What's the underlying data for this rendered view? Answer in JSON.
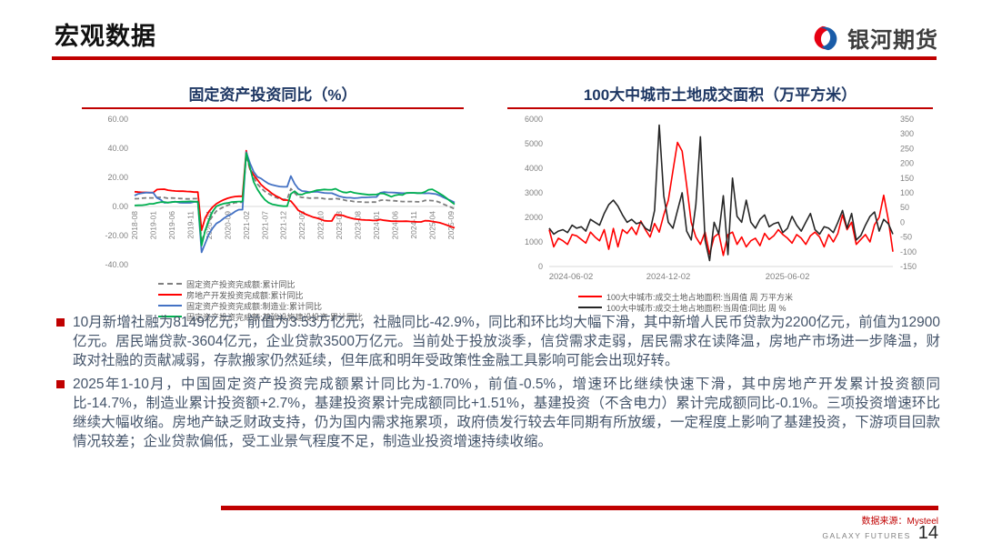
{
  "header": {
    "title": "宏观数据",
    "logo_text": "银河期货"
  },
  "chart_data": [
    {
      "type": "line",
      "title": "固定资产投资同比（%）",
      "ylim": [
        -40,
        60
      ],
      "y_ticks": [
        "60.00",
        "40.00",
        "20.00",
        "0.00",
        "-20.00",
        "-40.00"
      ],
      "x_tick_every": 5,
      "x_tick_labels": [
        "2018-08",
        "2019-01",
        "2019-06",
        "2019-11",
        "2020-04",
        "2020-09",
        "2021-02",
        "2021-07",
        "2021-12",
        "2022-05",
        "2022-10",
        "2023-03",
        "2023-08",
        "2024-01",
        "2024-06",
        "2024-11",
        "2025-04",
        "2025-09"
      ],
      "legend_position": "bottom",
      "grid": "zero-line-only",
      "series": [
        {
          "name": "固定资产投资完成额:累计同比",
          "color": "#7f7f7f",
          "dash": true,
          "values": [
            5.3,
            5.4,
            5.7,
            5.9,
            5.9,
            5.9,
            6.1,
            6.3,
            6.1,
            5.6,
            5.8,
            5.7,
            5.5,
            5.4,
            5.2,
            5.2,
            5.4,
            5.4,
            -24.5,
            -16.1,
            -10.3,
            -6.3,
            -3.1,
            -1.6,
            -0.3,
            0.8,
            1.8,
            2.6,
            2.9,
            2.9,
            35.0,
            25.6,
            19.9,
            15.4,
            12.6,
            10.3,
            8.9,
            7.3,
            6.1,
            5.2,
            4.9,
            4.9,
            12.2,
            9.3,
            6.8,
            6.2,
            6.1,
            5.7,
            5.8,
            5.9,
            5.8,
            5.3,
            5.1,
            5.1,
            5.5,
            5.1,
            4.7,
            4.0,
            3.8,
            3.4,
            3.2,
            3.1,
            2.9,
            2.9,
            3.0,
            3.0,
            4.2,
            4.5,
            4.2,
            4.0,
            3.9,
            3.6,
            3.4,
            3.4,
            3.4,
            3.3,
            3.2,
            3.2,
            4.1,
            4.2,
            4.0,
            3.7,
            2.8,
            1.6,
            0.5,
            -0.5,
            -1.7
          ]
        },
        {
          "name": "房地产开发投资完成额:累计同比",
          "color": "#ff0000",
          "dash": false,
          "values": [
            10.1,
            9.9,
            9.7,
            9.7,
            9.5,
            9.5,
            11.6,
            11.8,
            11.9,
            11.2,
            10.9,
            10.6,
            10.5,
            10.5,
            10.3,
            10.2,
            9.9,
            9.9,
            -16.3,
            -7.7,
            -3.3,
            -0.3,
            1.9,
            3.4,
            4.6,
            5.6,
            6.3,
            6.8,
            7.0,
            7.0,
            38.3,
            25.6,
            21.6,
            18.3,
            15.0,
            12.7,
            10.9,
            8.8,
            7.2,
            6.0,
            4.4,
            4.4,
            3.7,
            0.7,
            -2.7,
            -4.0,
            -5.4,
            -6.4,
            -7.4,
            -8.0,
            -8.8,
            -9.8,
            -10.0,
            -10.0,
            -5.7,
            -5.8,
            -6.2,
            -7.2,
            -7.9,
            -8.5,
            -8.8,
            -9.1,
            -9.3,
            -9.4,
            -9.6,
            -9.6,
            -9.0,
            -9.5,
            -9.8,
            -10.1,
            -10.1,
            -10.2,
            -10.2,
            -10.1,
            -10.3,
            -10.4,
            -10.6,
            -10.6,
            -9.8,
            -9.9,
            -10.3,
            -10.7,
            -11.2,
            -12.0,
            -12.9,
            -13.9,
            -14.7
          ]
        },
        {
          "name": "固定资产投资完成额:制造业:累计同比",
          "color": "#4472c4",
          "dash": false,
          "values": [
            7.5,
            8.7,
            9.1,
            9.5,
            9.5,
            9.5,
            5.9,
            4.6,
            2.5,
            2.7,
            3.0,
            3.3,
            2.6,
            2.5,
            2.6,
            2.5,
            3.1,
            3.1,
            -31.5,
            -25.2,
            -18.8,
            -14.8,
            -11.7,
            -10.2,
            -8.1,
            -6.5,
            -5.3,
            -3.5,
            -2.2,
            -2.2,
            37.3,
            29.8,
            23.8,
            20.4,
            19.2,
            17.3,
            15.7,
            14.8,
            14.2,
            13.7,
            13.5,
            13.5,
            20.9,
            15.6,
            12.2,
            10.6,
            10.4,
            9.9,
            10.0,
            10.1,
            9.7,
            9.3,
            9.1,
            9.1,
            8.1,
            7.0,
            6.4,
            6.0,
            6.0,
            5.7,
            5.9,
            6.2,
            6.2,
            6.3,
            6.5,
            6.5,
            9.4,
            9.9,
            9.7,
            9.6,
            9.5,
            9.3,
            9.1,
            9.2,
            9.3,
            9.3,
            9.2,
            9.2,
            9.0,
            9.1,
            8.8,
            8.5,
            7.5,
            6.2,
            5.1,
            4.0,
            2.7
          ]
        },
        {
          "name": "固定资产投资完成额:基础设施建设投资:累计同比",
          "color": "#00b050",
          "dash": false,
          "values": [
            0.7,
            0.8,
            0.9,
            1.2,
            1.8,
            1.8,
            2.5,
            3.0,
            3.0,
            2.6,
            3.0,
            3.2,
            3.2,
            3.4,
            3.3,
            3.5,
            3.3,
            3.3,
            -26.9,
            -16.4,
            -8.8,
            -3.3,
            0.1,
            1.2,
            2.0,
            2.4,
            3.0,
            3.2,
            3.4,
            3.4,
            36.6,
            26.8,
            16.9,
            11.8,
            7.8,
            4.6,
            2.6,
            1.5,
            1.0,
            0.5,
            0.2,
            0.2,
            8.6,
            10.5,
            8.3,
            8.2,
            9.3,
            9.6,
            10.4,
            11.2,
            11.4,
            11.7,
            11.5,
            11.5,
            12.2,
            10.8,
            9.8,
            9.5,
            10.2,
            9.4,
            9.0,
            8.6,
            8.3,
            8.0,
            8.2,
            8.2,
            9.0,
            8.8,
            7.8,
            6.7,
            7.7,
            8.1,
            7.9,
            9.3,
            9.4,
            9.4,
            9.2,
            9.2,
            10.0,
            11.5,
            11.8,
            10.4,
            8.9,
            7.3,
            5.4,
            3.3,
            1.5
          ]
        }
      ]
    },
    {
      "type": "line",
      "title": "100大中城市土地成交面积（万平方米）",
      "x_tick_labels": [
        "2024-06-02",
        "2024-12-02",
        "2025-06-02"
      ],
      "x_tick_indices": [
        0,
        26,
        52
      ],
      "axes": {
        "left": {
          "lim": [
            0,
            6000
          ],
          "ticks": [
            6000,
            5000,
            4000,
            3000,
            2000,
            1000,
            0
          ]
        },
        "right": {
          "lim": [
            -150,
            350
          ],
          "ticks": [
            350,
            300,
            250,
            200,
            150,
            100,
            50,
            0,
            -50,
            -100,
            -150
          ]
        }
      },
      "legend_position": "bottom",
      "series": [
        {
          "name": "100大中城市:成交土地占地面积:当周值 周 万平方米",
          "color": "#ff0000",
          "axis": "left",
          "dash": false,
          "values": [
            1500,
            800,
            1150,
            1050,
            900,
            1300,
            1250,
            1100,
            950,
            1400,
            1200,
            1050,
            1500,
            700,
            1550,
            800,
            1500,
            1350,
            1600,
            1300,
            1850,
            1500,
            1200,
            1750,
            1400,
            2100,
            2700,
            3900,
            5050,
            4700,
            3300,
            1800,
            1200,
            900,
            1400,
            500,
            1200,
            1350,
            450,
            1300,
            1400,
            900,
            1200,
            800,
            1050,
            1150,
            850,
            1350,
            1100,
            1250,
            1500,
            1300,
            1150,
            950,
            1300,
            1150,
            900,
            1250,
            1400,
            1200,
            800,
            1300,
            1000,
            1350,
            2100,
            1500,
            1800,
            900,
            1100,
            1300,
            1000,
            1700,
            2000,
            2900,
            1900,
            600
          ]
        },
        {
          "name": "100大中城市:成交土地占地面积:当周值:同比 周 %",
          "color": "#262626",
          "axis": "right",
          "dash": false,
          "values": [
            -20,
            -40,
            -30,
            -25,
            -35,
            -10,
            -20,
            -15,
            -30,
            10,
            0,
            -10,
            30,
            60,
            75,
            55,
            25,
            0,
            10,
            -5,
            0,
            -20,
            -30,
            40,
            330,
            90,
            0,
            -20,
            40,
            100,
            -30,
            -60,
            60,
            290,
            -60,
            -130,
            0,
            -40,
            90,
            -110,
            150,
            20,
            0,
            75,
            0,
            -20,
            10,
            25,
            -15,
            -5,
            0,
            -35,
            -20,
            20,
            -10,
            -30,
            0,
            30,
            -25,
            -40,
            -15,
            -20,
            -35,
            0,
            40,
            -20,
            30,
            -60,
            -45,
            -10,
            20,
            35,
            -30,
            10,
            -5,
            -40
          ]
        }
      ]
    }
  ],
  "bullets": {
    "items": [
      "10月新增社融为8149亿元，前值为3.53万亿元，社融同比-42.9%，同比和环比均大幅下滑，其中新增人民币贷款为2200亿元，前值为12900亿元。居民端贷款-3604亿元，企业贷款3500万亿元。当前处于投放淡季，信贷需求走弱，居民需求在读降温，房地产市场进一步降温，财政对社融的贡献减弱，存款搬家仍然延续，但年底和明年受政策性金融工具影响可能会出现好转。",
      "2025年1-10月，中国固定资产投资完成额累计同比为-1.70%，前值-0.5%，增速环比继续快速下滑，其中房地产开发累计投资额同比-14.7%，制造业累计投资额+2.7%，基建投资累计完成额同比+1.51%，基建投资（不含电力）累计完成额同比-0.1%。三项投资增速环比继续大幅收缩。房地产缺乏财政支持，仍为国内需求拖累项，政府债发行较去年同期有所放缓，一定程度上影响了基建投资，下游项目回款情况较差；企业贷款偏低，受工业景气程度不足，制造业投资增速持续收缩。"
    ]
  },
  "footer": {
    "source": "数据来源：Mysteel",
    "brand": "GALAXY FUTURES",
    "page": "14"
  }
}
